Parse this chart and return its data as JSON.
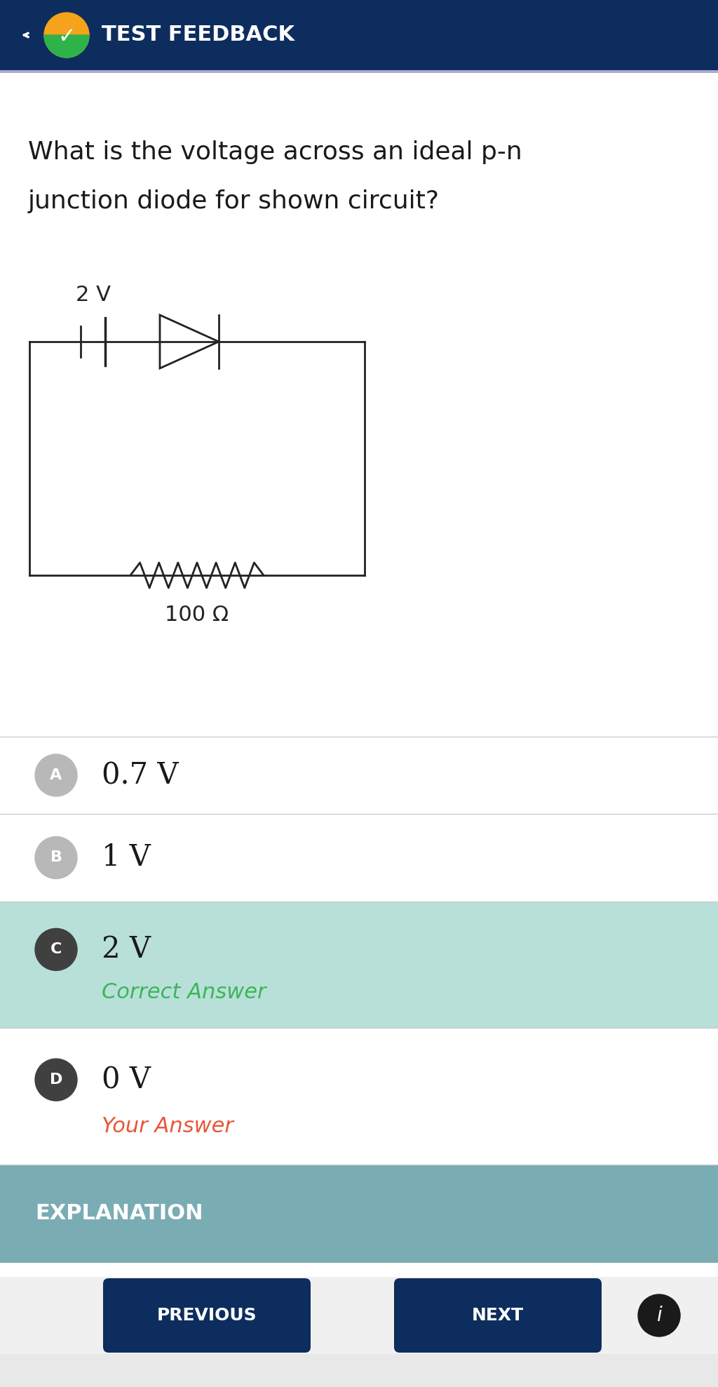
{
  "header_bg": "#0d2d5e",
  "header_text": "TEST FEEDBACK",
  "header_text_color": "#ffffff",
  "question_text_line1": "What is the voltage across an ideal p-n",
  "question_text_line2": "junction diode for shown circuit?",
  "question_color": "#1a1a1a",
  "options": [
    {
      "label": "A",
      "text": "0.7 V",
      "bg": "#ffffff",
      "label_bg": "#b8b8b8",
      "label_color": "#ffffff",
      "extra": null,
      "extra_color": null
    },
    {
      "label": "B",
      "text": "1 V",
      "bg": "#ffffff",
      "label_bg": "#b8b8b8",
      "label_color": "#ffffff",
      "extra": null,
      "extra_color": null
    },
    {
      "label": "C",
      "text": "2 V",
      "bg": "#b8e0d8",
      "label_bg": "#404040",
      "label_color": "#ffffff",
      "extra": "Correct Answer",
      "extra_color": "#3cb55a"
    },
    {
      "label": "D",
      "text": "0 V",
      "bg": "#ffffff",
      "label_bg": "#404040",
      "label_color": "#ffffff",
      "extra": "Your Answer",
      "extra_color": "#e8573a"
    }
  ],
  "explanation_bg": "#7aacb4",
  "explanation_text": "EXPLANATION",
  "explanation_text_color": "#ffffff",
  "button_bg": "#0d2d5e",
  "button_text_color": "#ffffff",
  "prev_text": "PREVIOUS",
  "next_text": "NEXT",
  "circuit_voltage": "2 V",
  "circuit_resistor": "100 Ω",
  "fig_width": 10.24,
  "fig_height": 19.77
}
